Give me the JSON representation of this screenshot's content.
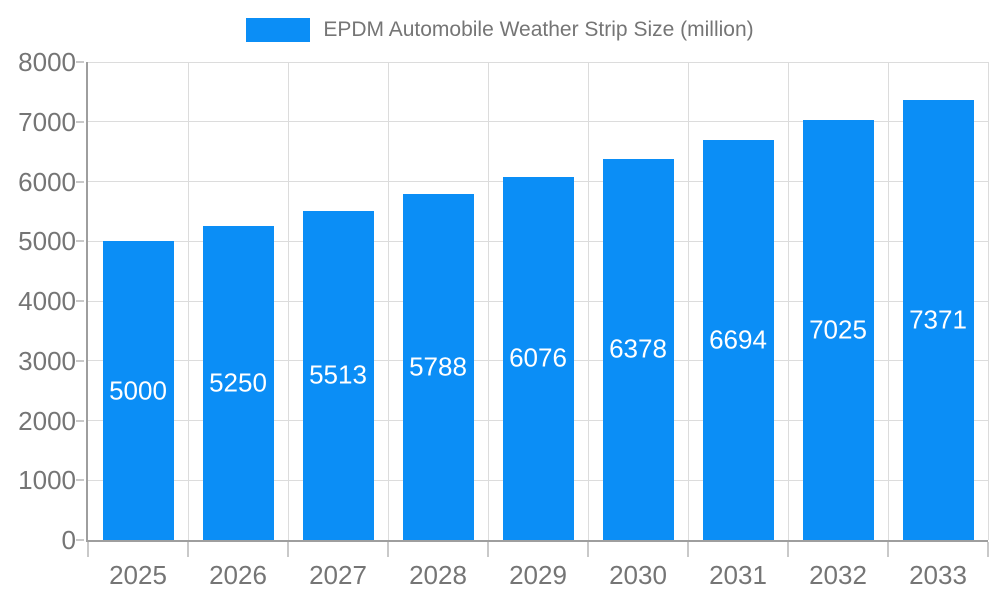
{
  "chart_data": {
    "type": "bar",
    "title": "EPDM Automobile Weather Strip Size (million)",
    "legend": {
      "position": "top",
      "label": "EPDM Automobile Weather Strip Size (million)"
    },
    "categories": [
      "2025",
      "2026",
      "2027",
      "2028",
      "2029",
      "2030",
      "2031",
      "2032",
      "2033"
    ],
    "values": [
      5000,
      5250,
      5513,
      5788,
      6076,
      6378,
      6694,
      7025,
      7371
    ],
    "bar_value_labels": [
      "5000",
      "5250",
      "5513",
      "5788",
      "6076",
      "6378",
      "6694",
      "7025",
      "7371"
    ],
    "xlabel": "",
    "ylabel": "",
    "ylim": [
      0,
      8000
    ],
    "y_ticks": [
      0,
      1000,
      2000,
      3000,
      4000,
      5000,
      6000,
      7000,
      8000
    ],
    "y_tick_labels": [
      "0",
      "1000",
      "2000",
      "3000",
      "4000",
      "5000",
      "6000",
      "7000",
      "8000"
    ],
    "grid": true,
    "value_labels_position": "inside-middle",
    "colors": {
      "bar": "#0b8ef6",
      "bar_label": "#ffffff",
      "text": "#757575",
      "grid": "#dcdcdc",
      "tick": "#c9c9c9",
      "axis": "#9e9e9e",
      "background": "#ffffff"
    }
  }
}
